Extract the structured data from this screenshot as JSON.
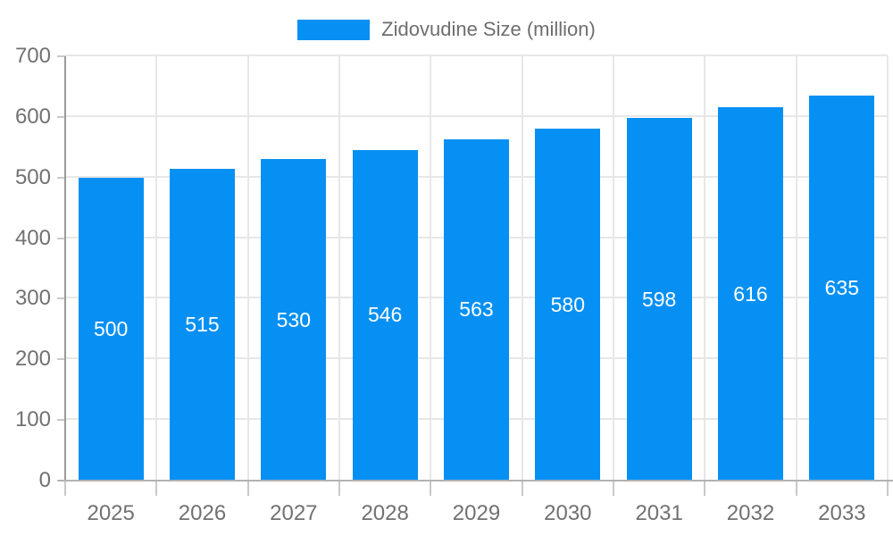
{
  "legend": {
    "label": "Zidovudine Size (million)"
  },
  "chart_data": {
    "type": "bar",
    "title": "",
    "categories": [
      "2025",
      "2026",
      "2027",
      "2028",
      "2029",
      "2030",
      "2031",
      "2032",
      "2033"
    ],
    "series": [
      {
        "name": "Zidovudine Size (million)",
        "values": [
          500,
          515,
          530,
          546,
          563,
          580,
          598,
          616,
          635
        ]
      }
    ],
    "value_labels": [
      "500",
      "515",
      "530",
      "546",
      "563",
      "580",
      "598",
      "616",
      "635"
    ],
    "value_label_style": "white text centered vertically inside each bar",
    "xlabel": "",
    "ylabel": "",
    "ylim": [
      0,
      700
    ],
    "ytick_step": 100,
    "yticks": [
      "0",
      "100",
      "200",
      "300",
      "400",
      "500",
      "600",
      "700"
    ],
    "grid": "horizontal and vertical light-gray gridlines on white background",
    "legend_position": "top-center"
  },
  "colors": {
    "bar": "#0790f3",
    "axis_text": "#717171",
    "legend_text": "#6e6e6e",
    "gridline": "#e7e7e7",
    "y_axis_line": "#9a9a9a",
    "x_axis_line": "#b2b2b2",
    "tick": "#c9c9c9",
    "value_label_text": "#ffffff",
    "background": "#ffffff"
  }
}
